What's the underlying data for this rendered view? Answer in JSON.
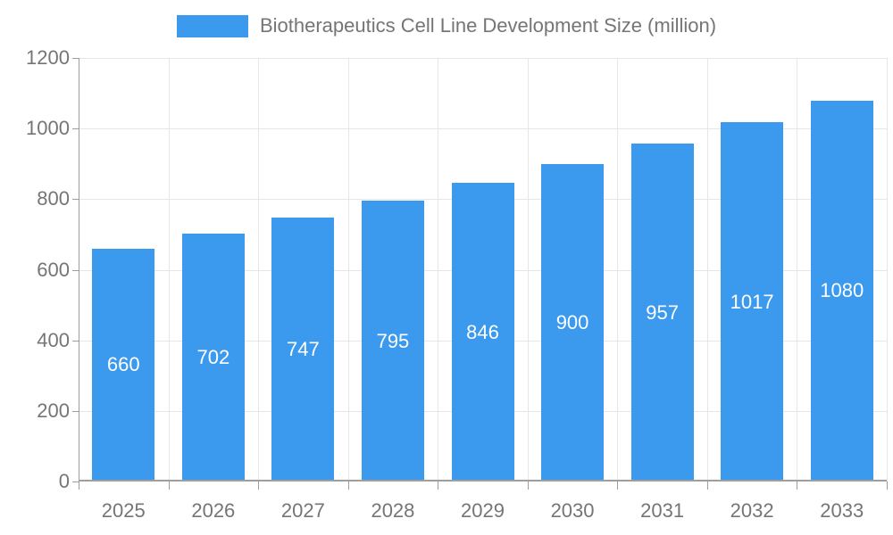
{
  "chart_data": {
    "type": "bar",
    "title": "Biotherapeutics Cell Line Development Size (million)",
    "categories": [
      "2025",
      "2026",
      "2027",
      "2028",
      "2029",
      "2030",
      "2031",
      "2032",
      "2033"
    ],
    "values": [
      660,
      702,
      747,
      795,
      846,
      900,
      957,
      1017,
      1080
    ],
    "xlabel": "",
    "ylabel": "",
    "ylim": [
      0,
      1200
    ],
    "yticks": [
      0,
      200,
      400,
      600,
      800,
      1000,
      1200
    ],
    "grid": true,
    "legend_position": "top",
    "value_labels": "inside-center",
    "colors": {
      "bar": "#3b99ee",
      "text": "#757575",
      "value_text": "#ffffff",
      "gridline": "#e6e6e6",
      "axis": "#9e9e9e"
    }
  }
}
